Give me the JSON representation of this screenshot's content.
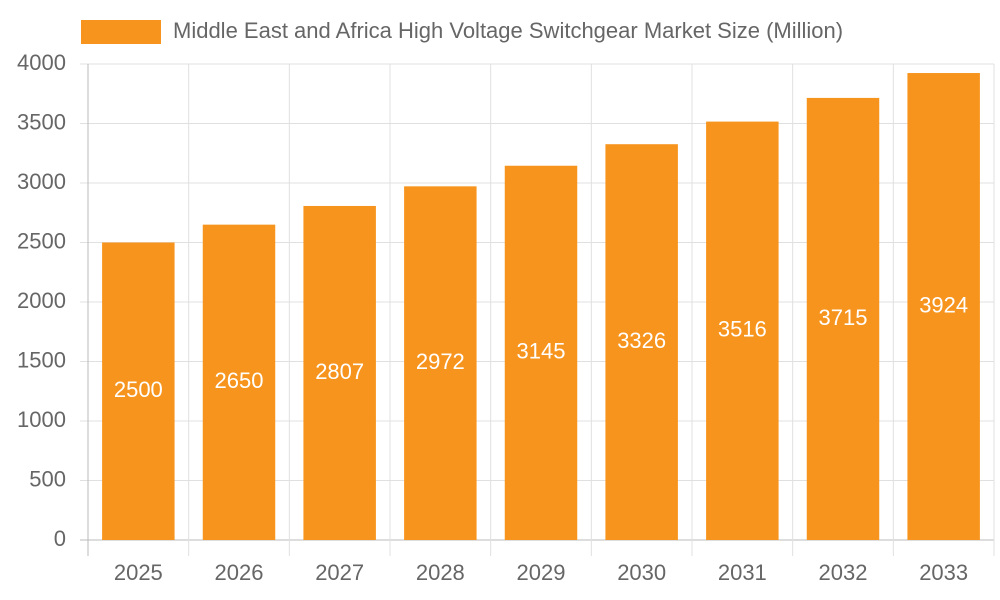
{
  "chart_data": {
    "type": "bar",
    "categories": [
      "2025",
      "2026",
      "2027",
      "2028",
      "2029",
      "2030",
      "2031",
      "2032",
      "2033"
    ],
    "series": [
      {
        "name": "Middle East and Africa High Voltage Switchgear Market Size (Million)",
        "color": "#f7941d",
        "values": [
          2500,
          2650,
          2807,
          2972,
          3145,
          3326,
          3516,
          3715,
          3924
        ]
      }
    ],
    "ylim": [
      0,
      4000
    ],
    "yticks": [
      0,
      500,
      1000,
      1500,
      2000,
      2500,
      3000,
      3500,
      4000
    ],
    "grid": true,
    "legend": "top"
  }
}
